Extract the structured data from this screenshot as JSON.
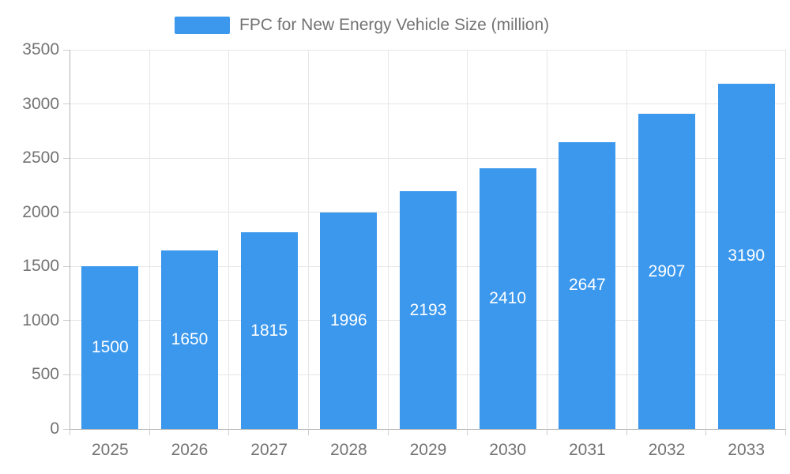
{
  "legend": {
    "label": "FPC for New Energy Vehicle Size (million)"
  },
  "colors": {
    "background": "#ffffff",
    "bar": "#3b98ed",
    "grid": "#e6e6e6",
    "axis": "#b3b3b3",
    "tick": "#cccccc",
    "text": "#737373",
    "label": "#ffffff"
  },
  "chart_data": {
    "type": "bar",
    "title": "FPC for New Energy Vehicle Size (million)",
    "categories": [
      "2025",
      "2026",
      "2027",
      "2028",
      "2029",
      "2030",
      "2031",
      "2032",
      "2033"
    ],
    "values": [
      1500,
      1650,
      1815,
      1996,
      2193,
      2410,
      2647,
      2907,
      3190
    ],
    "series_name": "FPC for New Energy Vehicle Size (million)",
    "xlabel": "",
    "ylabel": "",
    "ylim": [
      0,
      3500
    ],
    "yticks": [
      0,
      500,
      1000,
      1500,
      2000,
      2500,
      3000,
      3500
    ],
    "grid": true,
    "legend_position": "top",
    "value_labels": "inside-center"
  }
}
